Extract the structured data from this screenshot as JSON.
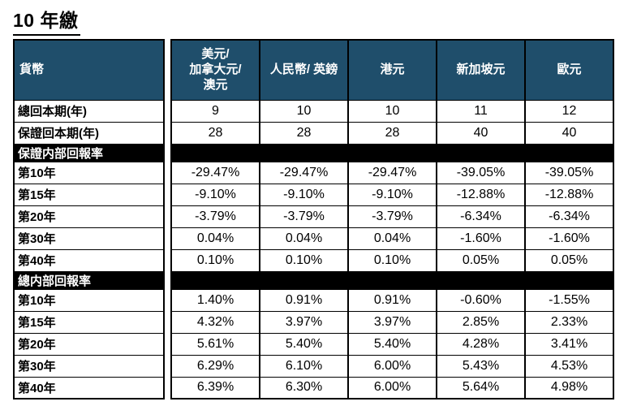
{
  "title": "10 年繳",
  "colors": {
    "header_bg": "#1F4E6B",
    "header_text": "#FFFFFF",
    "section_bg": "#000000",
    "section_text": "#FFFFFF",
    "border": "#000000"
  },
  "table": {
    "corner_label": "貨幣",
    "columns": [
      "美元/\n加拿大元/\n澳元",
      "人民幣/ 英鎊",
      "港元",
      "新加坡元",
      "歐元"
    ],
    "rows": [
      {
        "type": "data",
        "label": "總回本期(年)",
        "values": [
          "9",
          "10",
          "10",
          "11",
          "12"
        ]
      },
      {
        "type": "data",
        "label": "保證回本期(年)",
        "values": [
          "28",
          "28",
          "28",
          "40",
          "40"
        ]
      },
      {
        "type": "section",
        "label": "保證内部回報率",
        "values": []
      },
      {
        "type": "data",
        "label": "第10年",
        "values": [
          "-29.47%",
          "-29.47%",
          "-29.47%",
          "-39.05%",
          "-39.05%"
        ]
      },
      {
        "type": "data",
        "label": "第15年",
        "values": [
          "-9.10%",
          "-9.10%",
          "-9.10%",
          "-12.88%",
          "-12.88%"
        ]
      },
      {
        "type": "data",
        "label": "第20年",
        "values": [
          "-3.79%",
          "-3.79%",
          "-3.79%",
          "-6.34%",
          "-6.34%"
        ]
      },
      {
        "type": "data",
        "label": "第30年",
        "values": [
          "0.04%",
          "0.04%",
          "0.04%",
          "-1.60%",
          "-1.60%"
        ]
      },
      {
        "type": "data",
        "label": "第40年",
        "values": [
          "0.10%",
          "0.10%",
          "0.10%",
          "0.05%",
          "0.05%"
        ]
      },
      {
        "type": "section",
        "label": "總内部回報率",
        "values": []
      },
      {
        "type": "data",
        "label": "第10年",
        "values": [
          "1.40%",
          "0.91%",
          "0.91%",
          "-0.60%",
          "-1.55%"
        ]
      },
      {
        "type": "data",
        "label": "第15年",
        "values": [
          "4.32%",
          "3.97%",
          "3.97%",
          "2.85%",
          "2.33%"
        ]
      },
      {
        "type": "data",
        "label": "第20年",
        "values": [
          "5.61%",
          "5.40%",
          "5.40%",
          "4.28%",
          "3.41%"
        ]
      },
      {
        "type": "data",
        "label": "第30年",
        "values": [
          "6.29%",
          "6.10%",
          "6.00%",
          "5.43%",
          "4.53%"
        ]
      },
      {
        "type": "data",
        "label": "第40年",
        "values": [
          "6.39%",
          "6.30%",
          "6.00%",
          "5.64%",
          "4.98%"
        ]
      }
    ]
  }
}
